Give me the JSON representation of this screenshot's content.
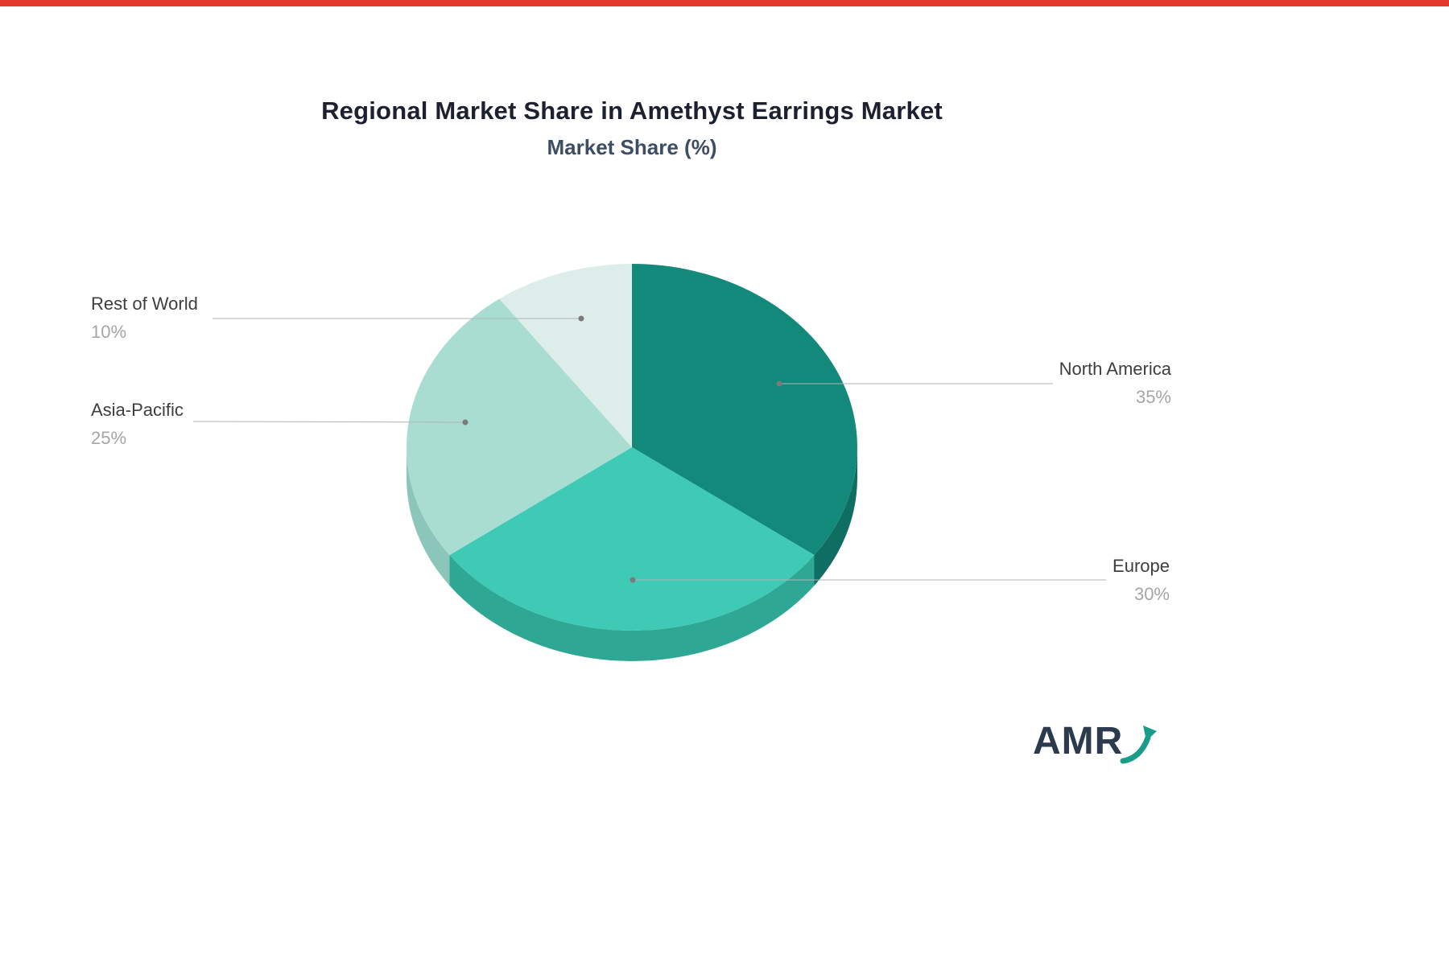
{
  "page": {
    "background": "#ffffff",
    "top_bar_color": "#e23b2e"
  },
  "chart_data": {
    "type": "pie",
    "title": "Regional Market Share in Amethyst Earrings Market",
    "subtitle": "Market Share (%)",
    "unit": "%",
    "start_angle_deg": -90,
    "direction": "clockwise",
    "legend_position": "none",
    "label_style": "callout-with-leader-lines",
    "effect": "3d-depth",
    "slices": [
      {
        "label": "North America",
        "value": 35,
        "display": "35%",
        "color": "#13897b",
        "side_color": "#0e6e62"
      },
      {
        "label": "Europe",
        "value": 30,
        "display": "30%",
        "color": "#3fcab5",
        "side_color": "#2fa795"
      },
      {
        "label": "Asia-Pacific",
        "value": 25,
        "display": "25%",
        "color": "#a9ddd2",
        "side_color": "#8cc5b9"
      },
      {
        "label": "Rest of World",
        "value": 10,
        "display": "10%",
        "color": "#ddeeea",
        "side_color": "#c0dcd6"
      }
    ]
  },
  "callout_text_color": "#3e3e3e",
  "callout_value_color": "#a6a6a6",
  "leader_line_color": "#b3b3b3",
  "leader_dot_color": "#7a7a7a",
  "logo": {
    "text": "AMR",
    "text_color": "#2c3a4e",
    "arrow_color": "#1a9c8b"
  }
}
